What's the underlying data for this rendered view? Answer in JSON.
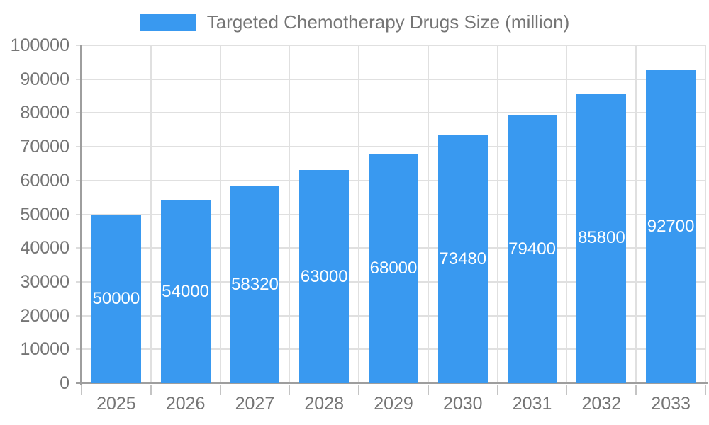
{
  "chart_data": {
    "type": "bar",
    "legend": "Targeted Chemotherapy Drugs Size (million)",
    "legend_position": "top",
    "categories": [
      "2025",
      "2026",
      "2027",
      "2028",
      "2029",
      "2030",
      "2031",
      "2032",
      "2033"
    ],
    "values": [
      50000,
      54000,
      58320,
      63000,
      68000,
      73480,
      79400,
      85800,
      92700
    ],
    "value_labels": [
      "50000",
      "54000",
      "58320",
      "63000",
      "68000",
      "73480",
      "79400",
      "85800",
      "92700"
    ],
    "xlabel": "",
    "ylabel": "",
    "ylim": [
      0,
      100000
    ],
    "ytick_interval": 10000,
    "ytick_labels": [
      "0",
      "10000",
      "20000",
      "30000",
      "40000",
      "50000",
      "60000",
      "70000",
      "80000",
      "90000",
      "100000"
    ],
    "grid": true,
    "bar_color": "#3999f0",
    "bar_value_label_color": "#ffffff",
    "axis_text_color": "#757575",
    "gridline_color": "#e0e0e0",
    "axis_line_color": "#9e9e9e"
  }
}
